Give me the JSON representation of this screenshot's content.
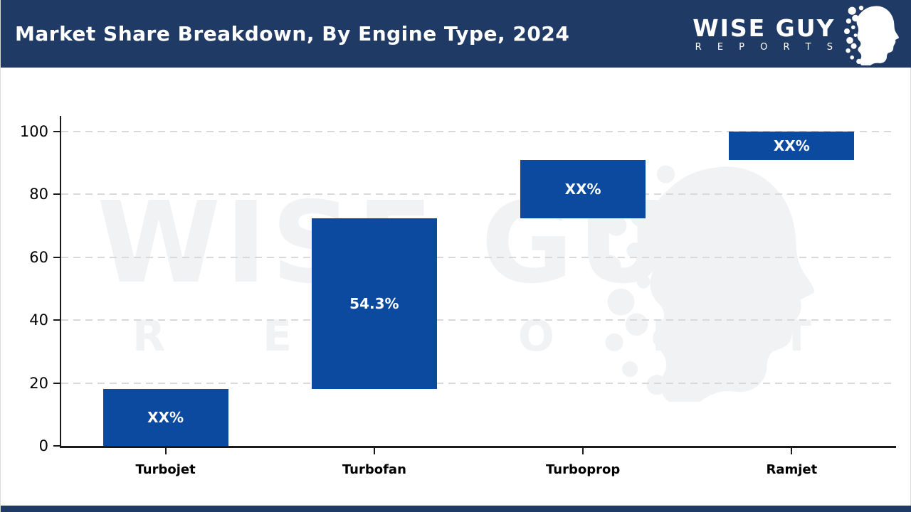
{
  "header": {
    "title": "Market Share Breakdown, By Engine Type, 2024",
    "logo": {
      "line1": "WISE GUY",
      "line2": "R E P O R T S"
    }
  },
  "watermark": {
    "line1": "WISE GUY",
    "line2": "R E P O R T S"
  },
  "colors": {
    "header_bg": "#203a66",
    "footer_bg": "#203a66",
    "bar": "#0b4a9e",
    "bar_label": "#ffffff",
    "gridline": "#d9d9d9",
    "axis": "#1a1a1a",
    "watermark": "#f1f2f4"
  },
  "chart_data": {
    "type": "bar",
    "subtype": "waterfall",
    "title": "Market Share Breakdown, By Engine Type, 2024",
    "categories": [
      "Turbojet",
      "Turbofan",
      "Turboprop",
      "Ramjet"
    ],
    "series": [
      {
        "name": "Market Share %",
        "bases": [
          0,
          18.1,
          72.4,
          91
        ],
        "values": [
          18.1,
          54.3,
          18.6,
          9
        ]
      }
    ],
    "bar_labels": [
      "XX%",
      "54.3%",
      "XX%",
      "XX%"
    ],
    "xlabel": "",
    "ylabel": "",
    "ylim": [
      0,
      100
    ],
    "yticks": [
      0,
      20,
      40,
      60,
      80,
      100
    ],
    "grid": "dashed-horizontal",
    "legend": "none"
  }
}
